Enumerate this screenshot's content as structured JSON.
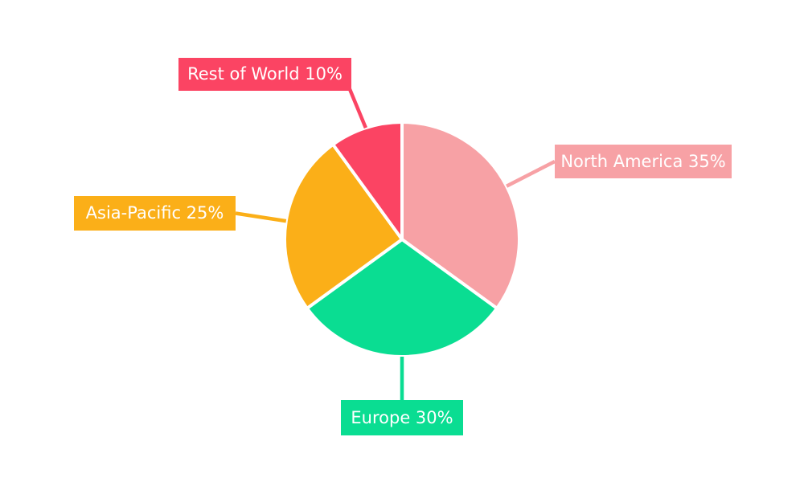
{
  "chart_data": {
    "type": "pie",
    "title": "",
    "unit": "%",
    "direction": "clockwise",
    "start_angle_deg": 0,
    "background_color": "#FFFFFF",
    "label_text_color": "#FFFFFF",
    "slice_gap_color": "#FFFFFF",
    "slices": [
      {
        "label": "North America",
        "value": 35,
        "display": "North America 35%",
        "color": "#F7A1A5"
      },
      {
        "label": "Europe",
        "value": 30,
        "display": "Europe 30%",
        "color": "#0ADD92"
      },
      {
        "label": "Asia-Pacific",
        "value": 25,
        "display": "Asia-Pacific 25%",
        "color": "#FBAF18"
      },
      {
        "label": "Rest of World",
        "value": 10,
        "display": "Rest of World 10%",
        "color": "#FB4463"
      }
    ]
  }
}
